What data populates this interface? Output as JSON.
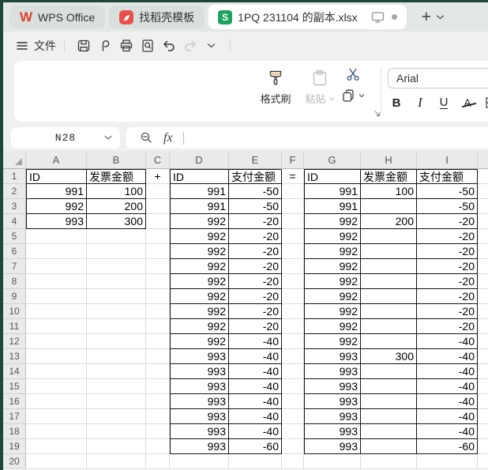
{
  "window": {
    "tabs": [
      {
        "label": "WPS Office"
      },
      {
        "label": "找稻壳模板"
      },
      {
        "label": "1PQ 231104 的副本.xlsx",
        "active": true
      }
    ]
  },
  "icons": {
    "wps_logo_glyph": "W",
    "sheet_logo_glyph": "S",
    "new_tab_glyph": "+"
  },
  "colors": {
    "frame_green": "#1d4737",
    "wps_red": "#e03e2d",
    "docer_red": "#e8514a",
    "sheet_green": "#1fa25f",
    "format_painter_accent": "#e9a23b"
  },
  "menu": {
    "file_label": "文件"
  },
  "toolbar": {
    "format_painter_label": "格式刷",
    "paste_label": "粘贴",
    "font_name": "Arial",
    "bold_label": "B",
    "italic_label": "I",
    "underline_label": "U",
    "strikethrough_label": "A"
  },
  "formula_bar": {
    "cell_ref": "N28",
    "fx_label": "fx"
  },
  "sheet": {
    "col_headers": [
      "A",
      "B",
      "C",
      "D",
      "E",
      "F",
      "G",
      "H",
      "I"
    ],
    "rows": [
      {
        "n": "1",
        "c": [
          "ID",
          "发票金额",
          "+",
          "ID",
          "支付金额",
          "=",
          "ID",
          "发票金额",
          "支付金额"
        ]
      },
      {
        "n": "2",
        "c": [
          "991",
          "100",
          "",
          "991",
          "-50",
          "",
          "991",
          "100",
          "-50"
        ]
      },
      {
        "n": "3",
        "c": [
          "992",
          "200",
          "",
          "991",
          "-50",
          "",
          "991",
          "",
          "-50"
        ]
      },
      {
        "n": "4",
        "c": [
          "993",
          "300",
          "",
          "992",
          "-20",
          "",
          "992",
          "200",
          "-20"
        ]
      },
      {
        "n": "5",
        "c": [
          "",
          "",
          "",
          "992",
          "-20",
          "",
          "992",
          "",
          "-20"
        ]
      },
      {
        "n": "6",
        "c": [
          "",
          "",
          "",
          "992",
          "-20",
          "",
          "992",
          "",
          "-20"
        ]
      },
      {
        "n": "7",
        "c": [
          "",
          "",
          "",
          "992",
          "-20",
          "",
          "992",
          "",
          "-20"
        ]
      },
      {
        "n": "8",
        "c": [
          "",
          "",
          "",
          "992",
          "-20",
          "",
          "992",
          "",
          "-20"
        ]
      },
      {
        "n": "9",
        "c": [
          "",
          "",
          "",
          "992",
          "-20",
          "",
          "992",
          "",
          "-20"
        ]
      },
      {
        "n": "10",
        "c": [
          "",
          "",
          "",
          "992",
          "-20",
          "",
          "992",
          "",
          "-20"
        ]
      },
      {
        "n": "11",
        "c": [
          "",
          "",
          "",
          "992",
          "-20",
          "",
          "992",
          "",
          "-20"
        ]
      },
      {
        "n": "12",
        "c": [
          "",
          "",
          "",
          "992",
          "-40",
          "",
          "992",
          "",
          "-40"
        ]
      },
      {
        "n": "13",
        "c": [
          "",
          "",
          "",
          "993",
          "-40",
          "",
          "993",
          "300",
          "-40"
        ]
      },
      {
        "n": "14",
        "c": [
          "",
          "",
          "",
          "993",
          "-40",
          "",
          "993",
          "",
          "-40"
        ]
      },
      {
        "n": "15",
        "c": [
          "",
          "",
          "",
          "993",
          "-40",
          "",
          "993",
          "",
          "-40"
        ]
      },
      {
        "n": "16",
        "c": [
          "",
          "",
          "",
          "993",
          "-40",
          "",
          "993",
          "",
          "-40"
        ]
      },
      {
        "n": "17",
        "c": [
          "",
          "",
          "",
          "993",
          "-40",
          "",
          "993",
          "",
          "-40"
        ]
      },
      {
        "n": "18",
        "c": [
          "",
          "",
          "",
          "993",
          "-40",
          "",
          "993",
          "",
          "-40"
        ]
      },
      {
        "n": "19",
        "c": [
          "",
          "",
          "",
          "993",
          "-60",
          "",
          "993",
          "",
          "-60"
        ]
      },
      {
        "n": "20",
        "c": [
          "",
          "",
          "",
          "",
          "",
          "",
          "",
          "",
          ""
        ]
      }
    ]
  }
}
